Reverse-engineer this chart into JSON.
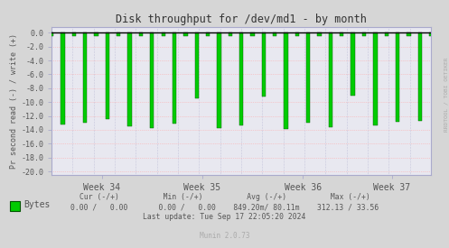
{
  "title": "Disk throughput for /dev/md1 - by month",
  "ylabel": "Pr second read (-) / write (+)",
  "background_color": "#d6d6d6",
  "plot_bg_color": "#e8e8f0",
  "grid_color_h": "#ffaaaa",
  "grid_color_v": "#aaaacc",
  "ylim": [
    -20.5,
    0.8
  ],
  "yticks": [
    0.0,
    -2.0,
    -4.0,
    -6.0,
    -8.0,
    -10.0,
    -12.0,
    -14.0,
    -16.0,
    -18.0,
    -20.0
  ],
  "week_labels": [
    "Week 34",
    "Week 35",
    "Week 36",
    "Week 37"
  ],
  "bar_color": "#00cc00",
  "bar_edge_color": "#005500",
  "zero_line_color": "#000000",
  "axis_color": "#aaaacc",
  "tick_color": "#aaaacc",
  "text_color": "#555555",
  "title_color": "#333333",
  "legend_label": "Bytes",
  "legend_color": "#00cc00",
  "last_update": "Last update: Tue Sep 17 22:05:20 2024",
  "munin_version": "Munin 2.0.73",
  "rrdtool_text": "RRDTOOL / TOBI OETIKER",
  "num_spikes": 35,
  "spike_depths": [
    -0.5,
    -13.2,
    -0.5,
    -13.0,
    -0.5,
    -12.5,
    -0.5,
    -13.5,
    -0.5,
    -13.8,
    -0.5,
    -13.1,
    -0.5,
    -9.5,
    -0.5,
    -13.7,
    -0.5,
    -13.3,
    -0.5,
    -9.2,
    -0.5,
    -13.9,
    -0.5,
    -13.0,
    -0.5,
    -13.6,
    -0.5,
    -9.0,
    -0.5,
    -13.4,
    -0.5,
    -12.8,
    -0.5,
    -12.7,
    -0.5
  ],
  "num_vgrid": 18
}
